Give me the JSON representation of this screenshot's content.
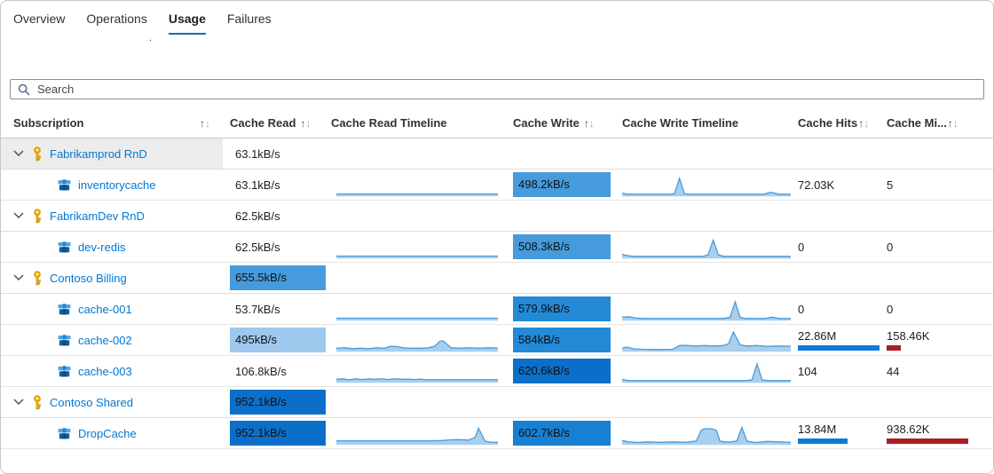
{
  "tabs": {
    "items": [
      {
        "label": "Overview",
        "active": false
      },
      {
        "label": "Operations",
        "active": false
      },
      {
        "label": "Usage",
        "active": true
      },
      {
        "label": "Failures",
        "active": false
      }
    ]
  },
  "misc": {
    "stray_dot": "."
  },
  "search": {
    "placeholder": "Search",
    "value": "",
    "icon": "search-icon"
  },
  "colors": {
    "accent": "#0f6cbd",
    "link": "#0078d4",
    "spark_stroke": "#4a9bda",
    "spark_fill": "#a9cfee",
    "hits_bar": "#0f7bd7",
    "misses_bar": "#aa1e25",
    "selected_row_bg": "#ececec",
    "heat_light": "#9fc8ee",
    "heat_medium": "#459bdb",
    "heat_dark": "#2489d6",
    "heat_darker": "#1780d2",
    "heat_darkest": "#0b6fc9"
  },
  "table": {
    "columns": {
      "subscription": "Subscription",
      "cache_read": "Cache Read",
      "cache_read_timeline": "Cache Read Timeline",
      "cache_write": "Cache Write",
      "cache_write_timeline": "Cache Write Timeline",
      "cache_hits": "Cache Hits",
      "cache_misses": "Cache Mi...",
      "sort_up": "↑",
      "sort_down": "↓"
    },
    "rows": [
      {
        "type": "group",
        "name": "Fabrikamprod RnD",
        "selected": true,
        "read": {
          "text": "63.1kB/s",
          "bar": null
        }
      },
      {
        "type": "cache",
        "name": "inventorycache",
        "read": {
          "text": "63.1kB/s",
          "bar": null
        },
        "read_spark": "flat",
        "write": {
          "text": "498.2kB/s",
          "bar": "#459bdb"
        },
        "write_spark": "inv_write",
        "hits": {
          "text": "72.03K",
          "value": 72030,
          "bar": false
        },
        "misses": {
          "text": "5",
          "value": 5,
          "bar": false
        }
      },
      {
        "type": "group",
        "name": "FabrikamDev RnD",
        "selected": false,
        "read": {
          "text": "62.5kB/s",
          "bar": null
        }
      },
      {
        "type": "cache",
        "name": "dev-redis",
        "read": {
          "text": "62.5kB/s",
          "bar": null
        },
        "read_spark": "flat",
        "write": {
          "text": "508.3kB/s",
          "bar": "#459bdb"
        },
        "write_spark": "dev_write",
        "hits": {
          "text": "0",
          "value": 0,
          "bar": false
        },
        "misses": {
          "text": "0",
          "value": 0,
          "bar": false
        }
      },
      {
        "type": "group",
        "name": "Contoso Billing",
        "selected": false,
        "read": {
          "text": "655.5kB/s",
          "bar": "#459bdb"
        }
      },
      {
        "type": "cache",
        "name": "cache-001",
        "read": {
          "text": "53.7kB/s",
          "bar": null
        },
        "read_spark": "flat",
        "write": {
          "text": "579.9kB/s",
          "bar": "#2489d6"
        },
        "write_spark": "c1_write",
        "hits": {
          "text": "0",
          "value": 0,
          "bar": false
        },
        "misses": {
          "text": "0",
          "value": 0,
          "bar": false
        }
      },
      {
        "type": "cache",
        "name": "cache-002",
        "read": {
          "text": "495kB/s",
          "bar": "#9fc8ee"
        },
        "read_spark": "c2_read",
        "write": {
          "text": "584kB/s",
          "bar": "#2489d6"
        },
        "write_spark": "c2_write",
        "hits": {
          "text": "22.86M",
          "value": 22860000,
          "bar": true
        },
        "misses": {
          "text": "158.46K",
          "value": 158460,
          "bar": true
        }
      },
      {
        "type": "cache",
        "name": "cache-003",
        "read": {
          "text": "106.8kB/s",
          "bar": null
        },
        "read_spark": "c3_read",
        "write": {
          "text": "620.6kB/s",
          "bar": "#0b6fc9"
        },
        "write_spark": "c3_write",
        "hits": {
          "text": "104",
          "value": 104,
          "bar": false
        },
        "misses": {
          "text": "44",
          "value": 44,
          "bar": false
        }
      },
      {
        "type": "group",
        "name": "Contoso Shared",
        "selected": false,
        "read": {
          "text": "952.1kB/s",
          "bar": "#0b6fc9"
        }
      },
      {
        "type": "cache",
        "name": "DropCache",
        "read": {
          "text": "952.1kB/s",
          "bar": "#0b6fc9"
        },
        "read_spark": "drop_read",
        "write": {
          "text": "602.7kB/s",
          "bar": "#1780d2"
        },
        "write_spark": "drop_write",
        "hits": {
          "text": "13.84M",
          "value": 13840000,
          "bar": true
        },
        "misses": {
          "text": "938.62K",
          "value": 938620,
          "bar": true
        }
      }
    ]
  },
  "spark_shapes": {
    "flat": [
      [
        0,
        22.5
      ],
      [
        100,
        22.5
      ]
    ],
    "inv_write": [
      [
        0,
        21.5
      ],
      [
        3,
        22.8
      ],
      [
        28,
        22.8
      ],
      [
        31,
        22.3
      ],
      [
        34,
        5
      ],
      [
        37,
        22.3
      ],
      [
        41,
        22.8
      ],
      [
        84,
        22.8
      ],
      [
        88,
        20.5
      ],
      [
        93,
        22.8
      ],
      [
        100,
        22.8
      ]
    ],
    "dev_write": [
      [
        0,
        20.5
      ],
      [
        4,
        22.3
      ],
      [
        8,
        22.8
      ],
      [
        48,
        22.8
      ],
      [
        51,
        21
      ],
      [
        54,
        4.5
      ],
      [
        57,
        21
      ],
      [
        60,
        22.8
      ],
      [
        100,
        22.8
      ]
    ],
    "c1_write": [
      [
        0,
        21.3
      ],
      [
        4,
        20.8
      ],
      [
        8,
        22.3
      ],
      [
        12,
        22.8
      ],
      [
        60,
        22.8
      ],
      [
        64,
        21.5
      ],
      [
        67,
        4
      ],
      [
        70,
        21.5
      ],
      [
        73,
        22.8
      ],
      [
        85,
        22.8
      ],
      [
        89,
        21.3
      ],
      [
        93,
        22.8
      ],
      [
        100,
        22.8
      ]
    ],
    "c2_write": [
      [
        0,
        21
      ],
      [
        3,
        20
      ],
      [
        7,
        22
      ],
      [
        12,
        22.5
      ],
      [
        22,
        22.8
      ],
      [
        30,
        22.5
      ],
      [
        34,
        18.3
      ],
      [
        38,
        18
      ],
      [
        43,
        18.8
      ],
      [
        49,
        18.3
      ],
      [
        55,
        18.8
      ],
      [
        60,
        18.3
      ],
      [
        63,
        16.5
      ],
      [
        66,
        3
      ],
      [
        70,
        17.5
      ],
      [
        74,
        18.8
      ],
      [
        80,
        18.3
      ],
      [
        86,
        19.3
      ],
      [
        92,
        18.8
      ],
      [
        100,
        19
      ]
    ],
    "c3_write": [
      [
        0,
        21.5
      ],
      [
        4,
        22.8
      ],
      [
        73,
        22.8
      ],
      [
        77,
        22
      ],
      [
        80,
        4
      ],
      [
        83,
        22
      ],
      [
        86,
        22.8
      ],
      [
        100,
        22.8
      ]
    ],
    "drop_write": [
      [
        0,
        20.3
      ],
      [
        4,
        21.8
      ],
      [
        9,
        22.5
      ],
      [
        15,
        21.8
      ],
      [
        22,
        22.3
      ],
      [
        30,
        21.8
      ],
      [
        38,
        22.3
      ],
      [
        44,
        20.8
      ],
      [
        47,
        8.5
      ],
      [
        49,
        7
      ],
      [
        53,
        7
      ],
      [
        56,
        9
      ],
      [
        58,
        21
      ],
      [
        63,
        22.3
      ],
      [
        68,
        20.8
      ],
      [
        71,
        5.5
      ],
      [
        74,
        21
      ],
      [
        79,
        22.5
      ],
      [
        86,
        21.3
      ],
      [
        93,
        21.8
      ],
      [
        100,
        22.3
      ]
    ],
    "c2_read": [
      [
        0,
        21.3
      ],
      [
        5,
        20.8
      ],
      [
        10,
        21.8
      ],
      [
        15,
        21.3
      ],
      [
        20,
        21.8
      ],
      [
        25,
        20.8
      ],
      [
        30,
        21.3
      ],
      [
        33,
        19.3
      ],
      [
        37,
        19.3
      ],
      [
        41,
        20.8
      ],
      [
        46,
        21.3
      ],
      [
        52,
        21.3
      ],
      [
        57,
        20.8
      ],
      [
        61,
        19
      ],
      [
        64,
        13.5
      ],
      [
        66,
        13
      ],
      [
        68,
        16
      ],
      [
        71,
        20.8
      ],
      [
        76,
        21.3
      ],
      [
        82,
        20.8
      ],
      [
        88,
        21.3
      ],
      [
        94,
        20.8
      ],
      [
        100,
        21
      ]
    ],
    "c3_read": [
      [
        0,
        21.3
      ],
      [
        4,
        20.8
      ],
      [
        8,
        21.8
      ],
      [
        12,
        20.8
      ],
      [
        16,
        21.6
      ],
      [
        20,
        20.8
      ],
      [
        24,
        21.3
      ],
      [
        28,
        20.6
      ],
      [
        32,
        21.6
      ],
      [
        36,
        20.8
      ],
      [
        40,
        21.3
      ],
      [
        44,
        21
      ],
      [
        48,
        21.6
      ],
      [
        52,
        21.2
      ],
      [
        56,
        21.8
      ],
      [
        62,
        21.8
      ],
      [
        100,
        21.8
      ]
    ],
    "drop_read": [
      [
        0,
        20.6
      ],
      [
        58,
        20.6
      ],
      [
        65,
        20.3
      ],
      [
        70,
        19.6
      ],
      [
        76,
        19.3
      ],
      [
        82,
        19.8
      ],
      [
        86,
        16.5
      ],
      [
        88,
        6.5
      ],
      [
        90,
        13.5
      ],
      [
        92,
        21
      ],
      [
        96,
        22.3
      ],
      [
        100,
        22.3
      ]
    ]
  }
}
